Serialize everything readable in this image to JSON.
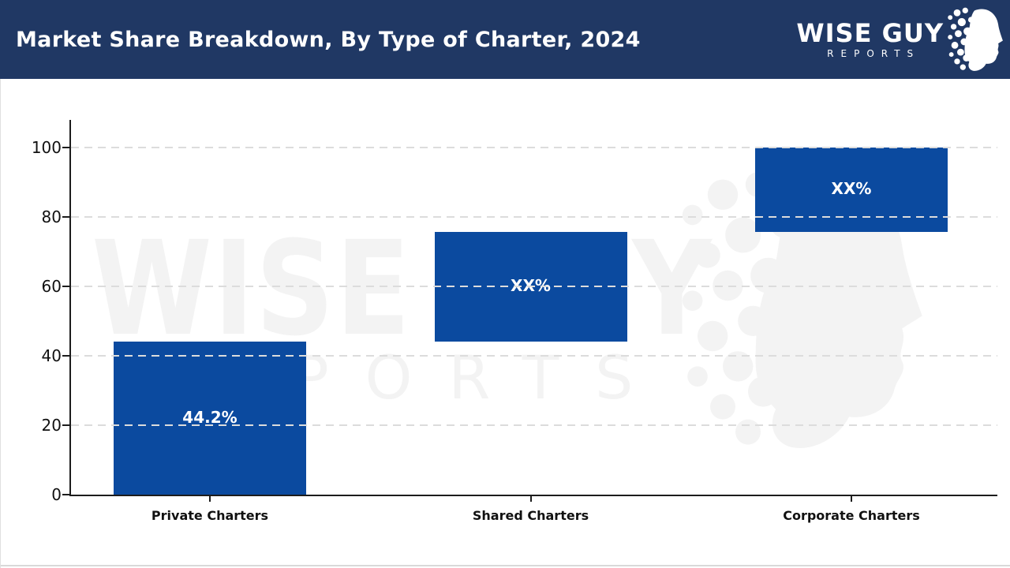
{
  "header": {
    "title": "Market Share Breakdown, By Type of Charter, 2024",
    "logo": {
      "line1": "WISE GUY",
      "line2": "REPORTS"
    }
  },
  "watermark": {
    "line1": "WISE GUY",
    "line2": "REPORTS"
  },
  "chart_data": {
    "type": "bar",
    "subtype": "floating-waterfall",
    "title": "Market Share Breakdown, By Type of Charter, 2024",
    "xlabel": "",
    "ylabel": "",
    "categories": [
      "Private Charters",
      "Shared Charters",
      "Corporate Charters"
    ],
    "bars": [
      {
        "category": "Private Charters",
        "from": 0,
        "to": 44.2,
        "label": "44.2%"
      },
      {
        "category": "Shared Charters",
        "from": 44.2,
        "to": 75.8,
        "label": "XX%"
      },
      {
        "category": "Corporate Charters",
        "from": 75.8,
        "to": 100,
        "label": "XX%"
      }
    ],
    "yticks": [
      0,
      20,
      40,
      60,
      80,
      100
    ],
    "ylim": [
      0,
      108
    ],
    "grid": "dashed-horizontal",
    "legend": "none",
    "bar_color": "#0b4a9f"
  },
  "colors": {
    "header_bg": "#203864",
    "bar": "#0b4a9f",
    "grid": "#dcdcdc",
    "axis": "#1c1c1c",
    "watermark": "#f3f3f3"
  }
}
